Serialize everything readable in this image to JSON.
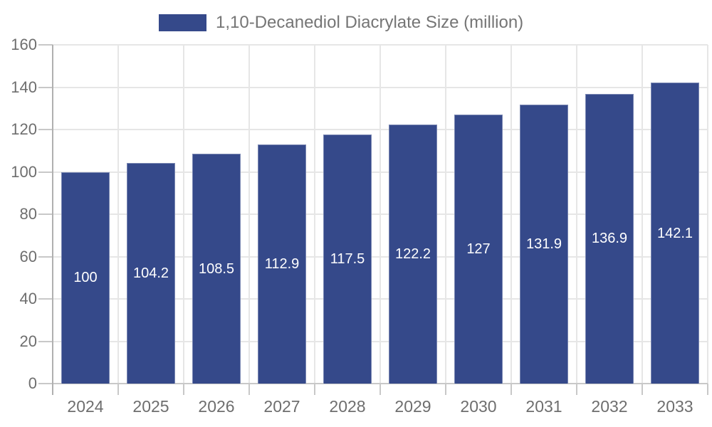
{
  "legend": {
    "label": "1,10-Decanediol Diacrylate Size (million)"
  },
  "chart_data": {
    "type": "bar",
    "title": "1,10-Decanediol Diacrylate Size (million)",
    "xlabel": "",
    "ylabel": "",
    "categories": [
      "2024",
      "2025",
      "2026",
      "2027",
      "2028",
      "2029",
      "2030",
      "2031",
      "2032",
      "2033"
    ],
    "series": [
      {
        "name": "1,10-Decanediol Diacrylate Size (million)",
        "values": [
          100,
          104.2,
          108.5,
          112.9,
          117.5,
          122.2,
          127,
          131.9,
          136.9,
          142.1
        ]
      }
    ],
    "value_labels": [
      "100",
      "104.2",
      "108.5",
      "112.9",
      "117.5",
      "122.2",
      "127",
      "131.9",
      "136.9",
      "142.1"
    ],
    "ylim": [
      0,
      160
    ],
    "yticks": [
      0,
      20,
      40,
      60,
      80,
      100,
      120,
      140,
      160
    ],
    "grid": true,
    "legend_position": "top",
    "colors": {
      "bar": "#35498a",
      "value_label": "#ffffff",
      "axis_label": "#6e6e6e",
      "legend_text": "#757575",
      "grid_line": "#e6e6e6",
      "axis_line": "#b0b0b0",
      "tick_line": "#c8c8c8"
    }
  }
}
